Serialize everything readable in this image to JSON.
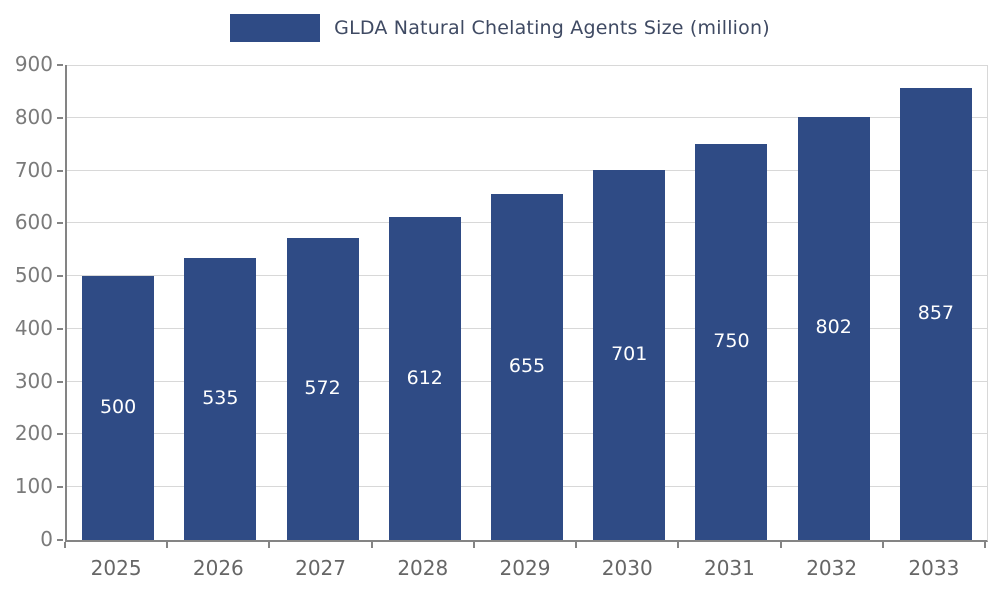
{
  "chart_data": {
    "type": "bar",
    "title": "GLDA Natural Chelating Agents Size (million)",
    "categories": [
      "2025",
      "2026",
      "2027",
      "2028",
      "2029",
      "2030",
      "2031",
      "2032",
      "2033"
    ],
    "values": [
      500,
      535,
      572,
      612,
      655,
      701,
      750,
      802,
      857
    ],
    "xlabel": "",
    "ylabel": "",
    "ylim": [
      0,
      900
    ],
    "yticks": [
      0,
      100,
      200,
      300,
      400,
      500,
      600,
      700,
      800,
      900
    ],
    "grid": true,
    "legend_position": "top",
    "colors": {
      "bar": "#2f4b85",
      "value_label": "#ffffff",
      "gridline": "#d8d8d8",
      "axis": "#848484",
      "ytick_label": "#7a7a7a",
      "xtick_label": "#666666",
      "title": "#3f4a63"
    }
  }
}
